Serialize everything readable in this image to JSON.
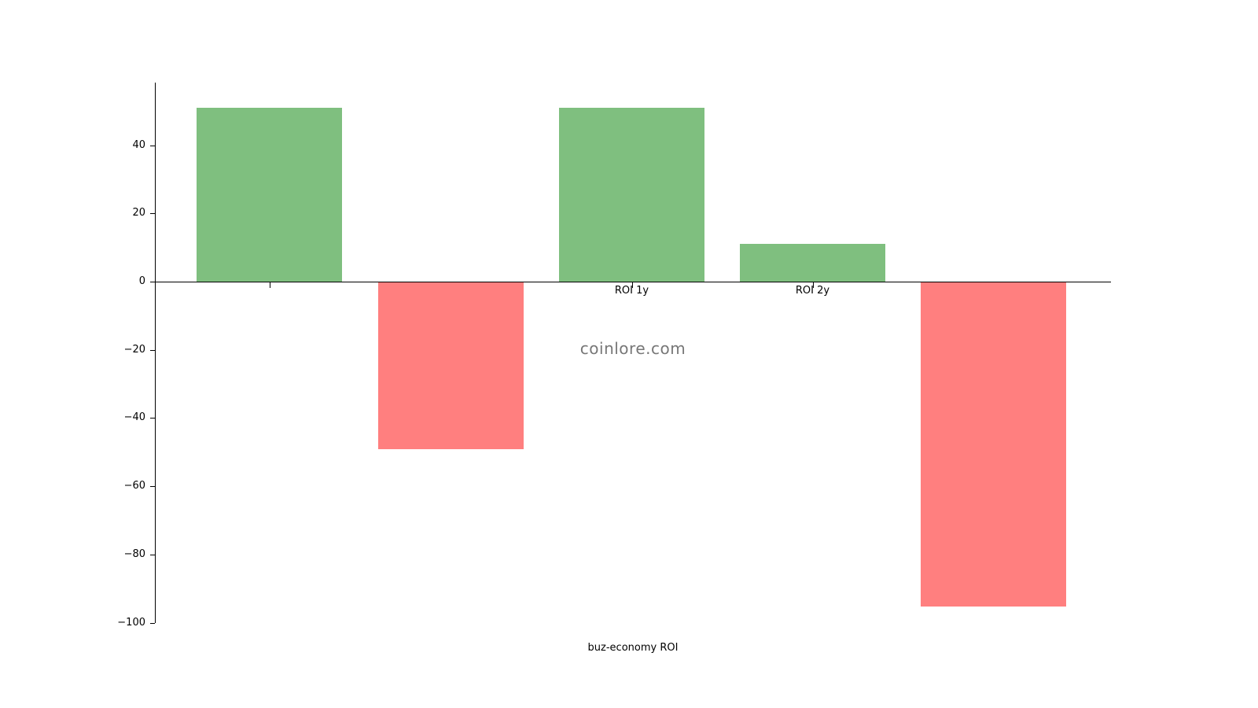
{
  "watermark": "coinlore.com",
  "colors": {
    "positive_bar": "#7fbf7f",
    "negative_bar": "#ff7f7f",
    "axis": "#000000",
    "watermark_text": "#777777",
    "background": "#ffffff"
  },
  "chart_data": {
    "type": "bar",
    "title": "",
    "xlabel": "buz-economy ROI",
    "ylabel": "",
    "categories": [
      "",
      "",
      "ROI 1y",
      "ROI 2y",
      ""
    ],
    "values": [
      51,
      -49,
      51,
      11,
      -95
    ],
    "positive_color": "#7fbf7f",
    "negative_color": "#ff7f7f",
    "y_ticks": [
      40,
      20,
      0,
      -20,
      -40,
      -60,
      -80,
      -100
    ],
    "y_tick_labels": [
      "40",
      "20",
      "0",
      "−20",
      "−40",
      "−60",
      "−80",
      "−100"
    ],
    "ylim": [
      -100,
      58
    ],
    "grid": false,
    "legend_position": "none",
    "watermark": "coinlore.com"
  }
}
